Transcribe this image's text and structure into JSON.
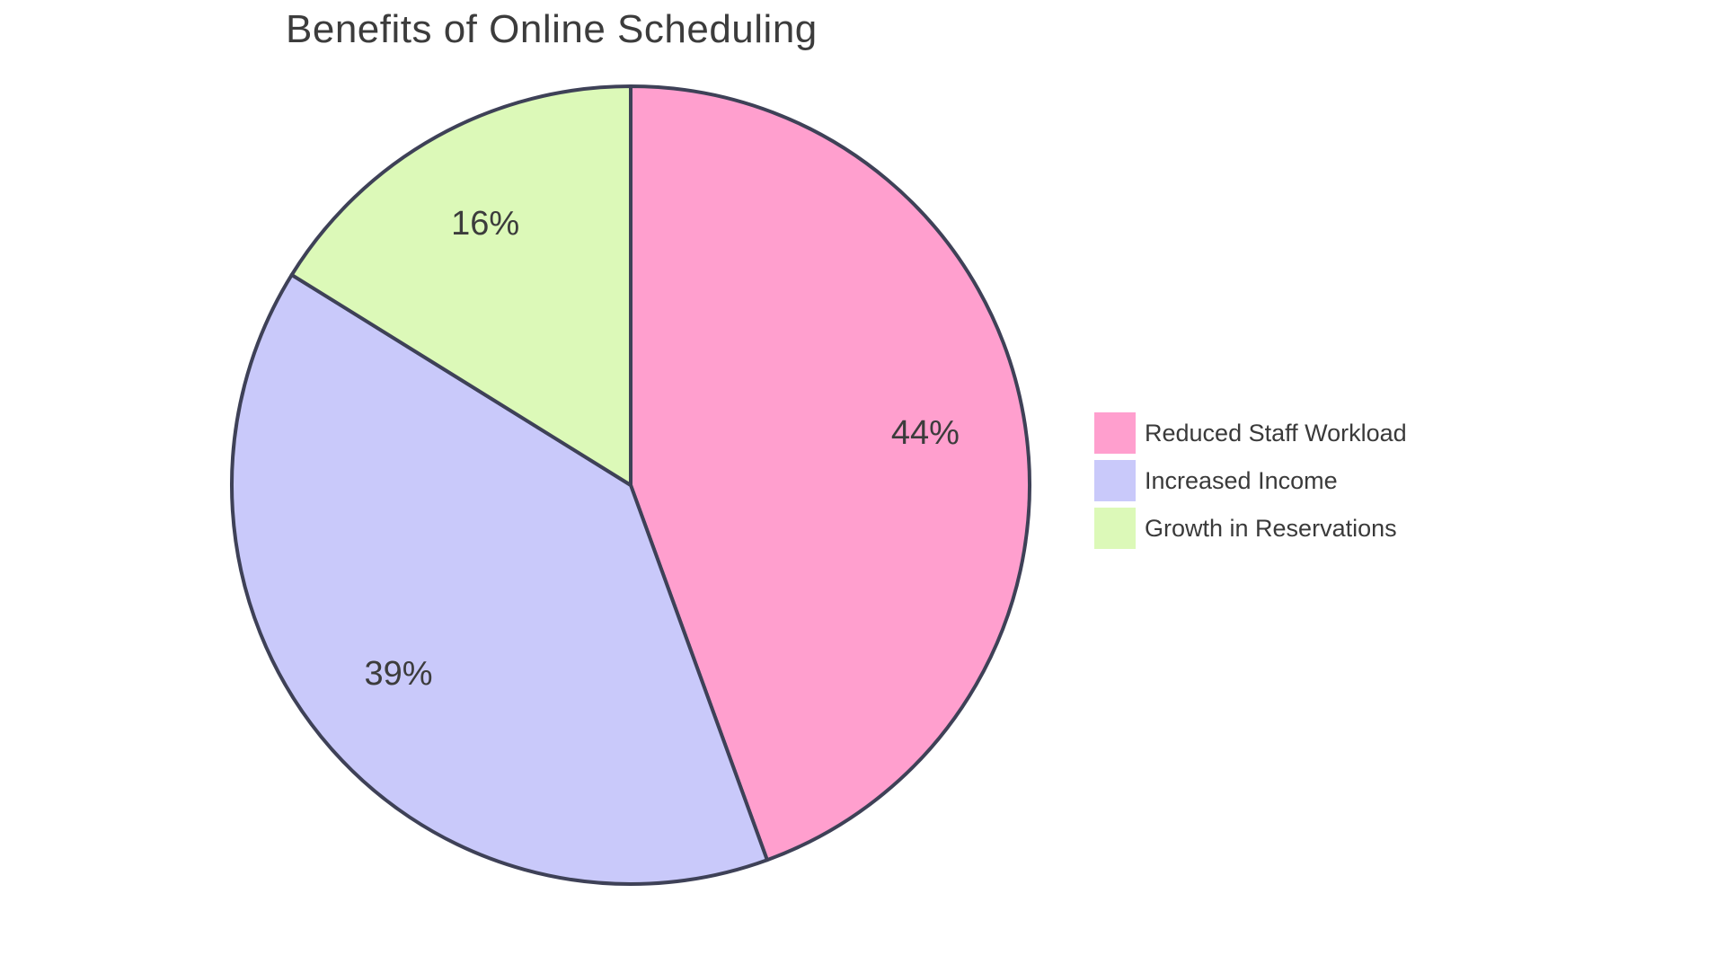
{
  "chart_data": {
    "type": "pie",
    "title": "Benefits of Online Scheduling",
    "start_angle_deg": 0,
    "direction": "clockwise",
    "legend_position": "right",
    "slices": [
      {
        "label": "Reduced Staff Workload",
        "value": 44,
        "pct_label": "44%",
        "color": "#FF9FCE"
      },
      {
        "label": "Increased Income",
        "value": 39,
        "pct_label": "39%",
        "color": "#C9C9FA"
      },
      {
        "label": "Growth in Reservations",
        "value": 16,
        "pct_label": "16%",
        "color": "#DCF9B8"
      }
    ],
    "styles": {
      "background": "#FFFFFF",
      "slice_outline_color": "#3E4157",
      "pct_label_color": "#3C3C3C",
      "title_color": "#3C3C3C",
      "legend_text_color": "#3A3A3A"
    }
  }
}
